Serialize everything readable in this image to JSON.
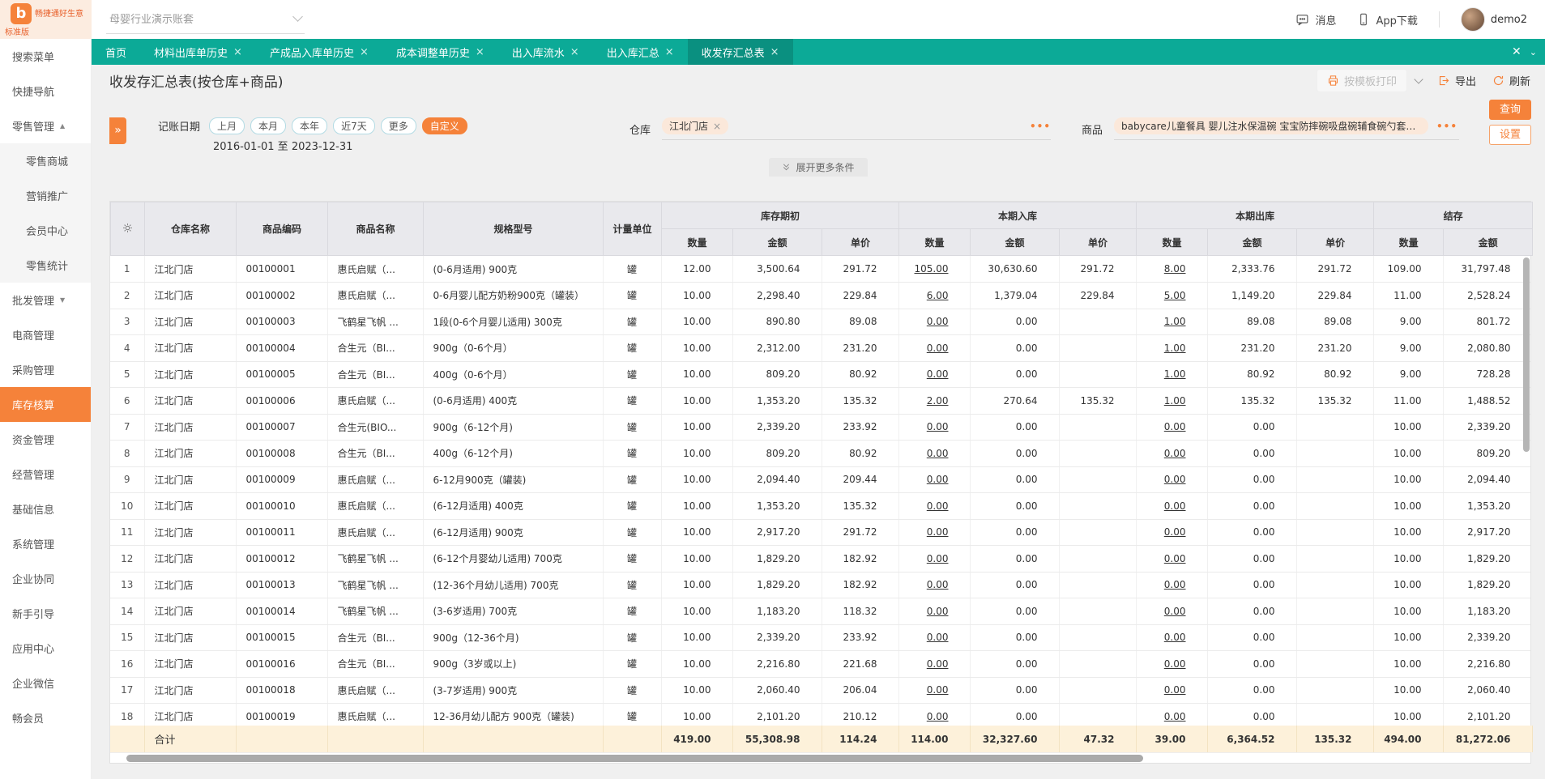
{
  "topbar": {
    "brand": "畅捷通好生意",
    "edition": "标准版",
    "account": "母婴行业演示账套",
    "messages": "消息",
    "app_download": "App下载",
    "user": "demo2"
  },
  "tabs": [
    {
      "label": "首页",
      "closable": false,
      "active": false
    },
    {
      "label": "材料出库单历史",
      "closable": true,
      "active": false
    },
    {
      "label": "产成品入库单历史",
      "closable": true,
      "active": false
    },
    {
      "label": "成本调整单历史",
      "closable": true,
      "active": false
    },
    {
      "label": "出入库流水",
      "closable": true,
      "active": false
    },
    {
      "label": "出入库汇总",
      "closable": true,
      "active": false
    },
    {
      "label": "收发存汇总表",
      "closable": true,
      "active": true
    }
  ],
  "sidebar": [
    {
      "label": "搜索菜单"
    },
    {
      "label": "快捷导航"
    },
    {
      "label": "零售管理",
      "arrow": "up"
    },
    {
      "label": "零售商城",
      "child": true
    },
    {
      "label": "营销推广",
      "child": true
    },
    {
      "label": "会员中心",
      "child": true
    },
    {
      "label": "零售统计",
      "child": true
    },
    {
      "label": "批发管理",
      "arrow": "down"
    },
    {
      "label": "电商管理"
    },
    {
      "label": "采购管理"
    },
    {
      "label": "库存核算",
      "active": true
    },
    {
      "label": "资金管理"
    },
    {
      "label": "经营管理"
    },
    {
      "label": "基础信息"
    },
    {
      "label": "系统管理"
    },
    {
      "label": "企业协同"
    },
    {
      "label": "新手引导"
    },
    {
      "label": "应用中心"
    },
    {
      "label": "企业微信"
    },
    {
      "label": "畅会员"
    }
  ],
  "page": {
    "title": "收发存汇总表(按仓库+商品)",
    "print_label": "按模板打印",
    "export_label": "导出",
    "refresh_label": "刷新"
  },
  "filters": {
    "date_label": "记账日期",
    "quick_ranges": [
      "上月",
      "本月",
      "本年",
      "近7天",
      "更多"
    ],
    "custom_label": "自定义",
    "date_range": "2016-01-01 至 2023-12-31",
    "warehouse_label": "仓库",
    "warehouse_tag": "江北门店",
    "product_label": "商品",
    "product_tag": "babycare儿童餐具 婴儿注水保温碗 宝宝防摔碗吸盘碗辅食碗勺套装 雀湖绿 |",
    "search_label": "查询",
    "settings_label": "设置",
    "expand_more": "展开更多条件"
  },
  "table": {
    "fixed_headers": [
      "仓库名称",
      "商品编码",
      "商品名称",
      "规格型号",
      "计量单位"
    ],
    "groups": [
      {
        "label": "库存期初",
        "cols": [
          "数量",
          "金额",
          "单价"
        ]
      },
      {
        "label": "本期入库",
        "cols": [
          "数量",
          "金额",
          "单价"
        ]
      },
      {
        "label": "本期出库",
        "cols": [
          "数量",
          "金额",
          "单价"
        ]
      },
      {
        "label": "结存",
        "cols": [
          "数量",
          "金额"
        ]
      }
    ],
    "rows": [
      {
        "idx": "1",
        "warehouse": "江北门店",
        "code": "00100001",
        "name": "惠氏启赋（...",
        "spec": "(0-6月适用) 900克",
        "unit": "罐",
        "values": [
          "12.00",
          "3,500.64",
          "291.72",
          "105.00",
          "30,630.60",
          "291.72",
          "8.00",
          "2,333.76",
          "291.72",
          "109.00",
          "31,797.48"
        ]
      },
      {
        "idx": "2",
        "warehouse": "江北门店",
        "code": "00100002",
        "name": "惠氏启赋（...",
        "spec": "0-6月婴儿配方奶粉900克（罐装）",
        "unit": "罐",
        "values": [
          "10.00",
          "2,298.40",
          "229.84",
          "6.00",
          "1,379.04",
          "229.84",
          "5.00",
          "1,149.20",
          "229.84",
          "11.00",
          "2,528.24"
        ]
      },
      {
        "idx": "3",
        "warehouse": "江北门店",
        "code": "00100003",
        "name": "飞鹤星飞帆 ...",
        "spec": "1段(0-6个月婴儿适用) 300克",
        "unit": "罐",
        "values": [
          "10.00",
          "890.80",
          "89.08",
          "0.00",
          "0.00",
          "",
          "1.00",
          "89.08",
          "89.08",
          "9.00",
          "801.72"
        ]
      },
      {
        "idx": "4",
        "warehouse": "江北门店",
        "code": "00100004",
        "name": "合生元（BI...",
        "spec": "900g（0-6个月）",
        "unit": "罐",
        "values": [
          "10.00",
          "2,312.00",
          "231.20",
          "0.00",
          "0.00",
          "",
          "1.00",
          "231.20",
          "231.20",
          "9.00",
          "2,080.80"
        ]
      },
      {
        "idx": "5",
        "warehouse": "江北门店",
        "code": "00100005",
        "name": "合生元（BI...",
        "spec": "400g（0-6个月）",
        "unit": "罐",
        "values": [
          "10.00",
          "809.20",
          "80.92",
          "0.00",
          "0.00",
          "",
          "1.00",
          "80.92",
          "80.92",
          "9.00",
          "728.28"
        ]
      },
      {
        "idx": "6",
        "warehouse": "江北门店",
        "code": "00100006",
        "name": "惠氏启赋（...",
        "spec": "(0-6月适用) 400克",
        "unit": "罐",
        "values": [
          "10.00",
          "1,353.20",
          "135.32",
          "2.00",
          "270.64",
          "135.32",
          "1.00",
          "135.32",
          "135.32",
          "11.00",
          "1,488.52"
        ]
      },
      {
        "idx": "7",
        "warehouse": "江北门店",
        "code": "00100007",
        "name": "合生元(BIO...",
        "spec": "900g（6-12个月)",
        "unit": "罐",
        "values": [
          "10.00",
          "2,339.20",
          "233.92",
          "0.00",
          "0.00",
          "",
          "0.00",
          "0.00",
          "",
          "10.00",
          "2,339.20"
        ]
      },
      {
        "idx": "8",
        "warehouse": "江北门店",
        "code": "00100008",
        "name": "合生元（BI...",
        "spec": "400g（6-12个月)",
        "unit": "罐",
        "values": [
          "10.00",
          "809.20",
          "80.92",
          "0.00",
          "0.00",
          "",
          "0.00",
          "0.00",
          "",
          "10.00",
          "809.20"
        ]
      },
      {
        "idx": "9",
        "warehouse": "江北门店",
        "code": "00100009",
        "name": "惠氏启赋（...",
        "spec": "6-12月900克（罐装)",
        "unit": "罐",
        "values": [
          "10.00",
          "2,094.40",
          "209.44",
          "0.00",
          "0.00",
          "",
          "0.00",
          "0.00",
          "",
          "10.00",
          "2,094.40"
        ]
      },
      {
        "idx": "10",
        "warehouse": "江北门店",
        "code": "00100010",
        "name": "惠氏启赋（...",
        "spec": "(6-12月适用) 400克",
        "unit": "罐",
        "values": [
          "10.00",
          "1,353.20",
          "135.32",
          "0.00",
          "0.00",
          "",
          "0.00",
          "0.00",
          "",
          "10.00",
          "1,353.20"
        ]
      },
      {
        "idx": "11",
        "warehouse": "江北门店",
        "code": "00100011",
        "name": "惠氏启赋（...",
        "spec": "(6-12月适用) 900克",
        "unit": "罐",
        "values": [
          "10.00",
          "2,917.20",
          "291.72",
          "0.00",
          "0.00",
          "",
          "0.00",
          "0.00",
          "",
          "10.00",
          "2,917.20"
        ]
      },
      {
        "idx": "12",
        "warehouse": "江北门店",
        "code": "00100012",
        "name": "飞鹤星飞帆 ...",
        "spec": "(6-12个月婴幼儿适用) 700克",
        "unit": "罐",
        "values": [
          "10.00",
          "1,829.20",
          "182.92",
          "0.00",
          "0.00",
          "",
          "0.00",
          "0.00",
          "",
          "10.00",
          "1,829.20"
        ]
      },
      {
        "idx": "13",
        "warehouse": "江北门店",
        "code": "00100013",
        "name": "飞鹤星飞帆 ...",
        "spec": "(12-36个月幼儿适用) 700克",
        "unit": "罐",
        "values": [
          "10.00",
          "1,829.20",
          "182.92",
          "0.00",
          "0.00",
          "",
          "0.00",
          "0.00",
          "",
          "10.00",
          "1,829.20"
        ]
      },
      {
        "idx": "14",
        "warehouse": "江北门店",
        "code": "00100014",
        "name": "飞鹤星飞帆 ...",
        "spec": "(3-6岁适用) 700克",
        "unit": "罐",
        "values": [
          "10.00",
          "1,183.20",
          "118.32",
          "0.00",
          "0.00",
          "",
          "0.00",
          "0.00",
          "",
          "10.00",
          "1,183.20"
        ]
      },
      {
        "idx": "15",
        "warehouse": "江北门店",
        "code": "00100015",
        "name": "合生元（BI...",
        "spec": "900g（12-36个月)",
        "unit": "罐",
        "values": [
          "10.00",
          "2,339.20",
          "233.92",
          "0.00",
          "0.00",
          "",
          "0.00",
          "0.00",
          "",
          "10.00",
          "2,339.20"
        ]
      },
      {
        "idx": "16",
        "warehouse": "江北门店",
        "code": "00100016",
        "name": "合生元（BI...",
        "spec": "900g（3岁或以上)",
        "unit": "罐",
        "values": [
          "10.00",
          "2,216.80",
          "221.68",
          "0.00",
          "0.00",
          "",
          "0.00",
          "0.00",
          "",
          "10.00",
          "2,216.80"
        ]
      },
      {
        "idx": "17",
        "warehouse": "江北门店",
        "code": "00100018",
        "name": "惠氏启赋（...",
        "spec": "(3-7岁适用) 900克",
        "unit": "罐",
        "values": [
          "10.00",
          "2,060.40",
          "206.04",
          "0.00",
          "0.00",
          "",
          "0.00",
          "0.00",
          "",
          "10.00",
          "2,060.40"
        ]
      },
      {
        "idx": "18",
        "warehouse": "江北门店",
        "code": "00100019",
        "name": "惠氏启赋（...",
        "spec": "12-36月幼儿配方 900克（罐装)",
        "unit": "罐",
        "values": [
          "10.00",
          "2,101.20",
          "210.12",
          "0.00",
          "0.00",
          "",
          "0.00",
          "0.00",
          "",
          "10.00",
          "2,101.20"
        ]
      }
    ],
    "total_label": "合计",
    "totals": [
      "419.00",
      "55,308.98",
      "114.24",
      "114.00",
      "32,327.60",
      "47.32",
      "39.00",
      "6,364.52",
      "135.32",
      "494.00",
      "81,272.06"
    ]
  },
  "colors": {
    "teal": "#0caa97",
    "teal_active": "#0a9080",
    "orange": "#f5823a",
    "total_row_bg": "#fdf1da"
  }
}
